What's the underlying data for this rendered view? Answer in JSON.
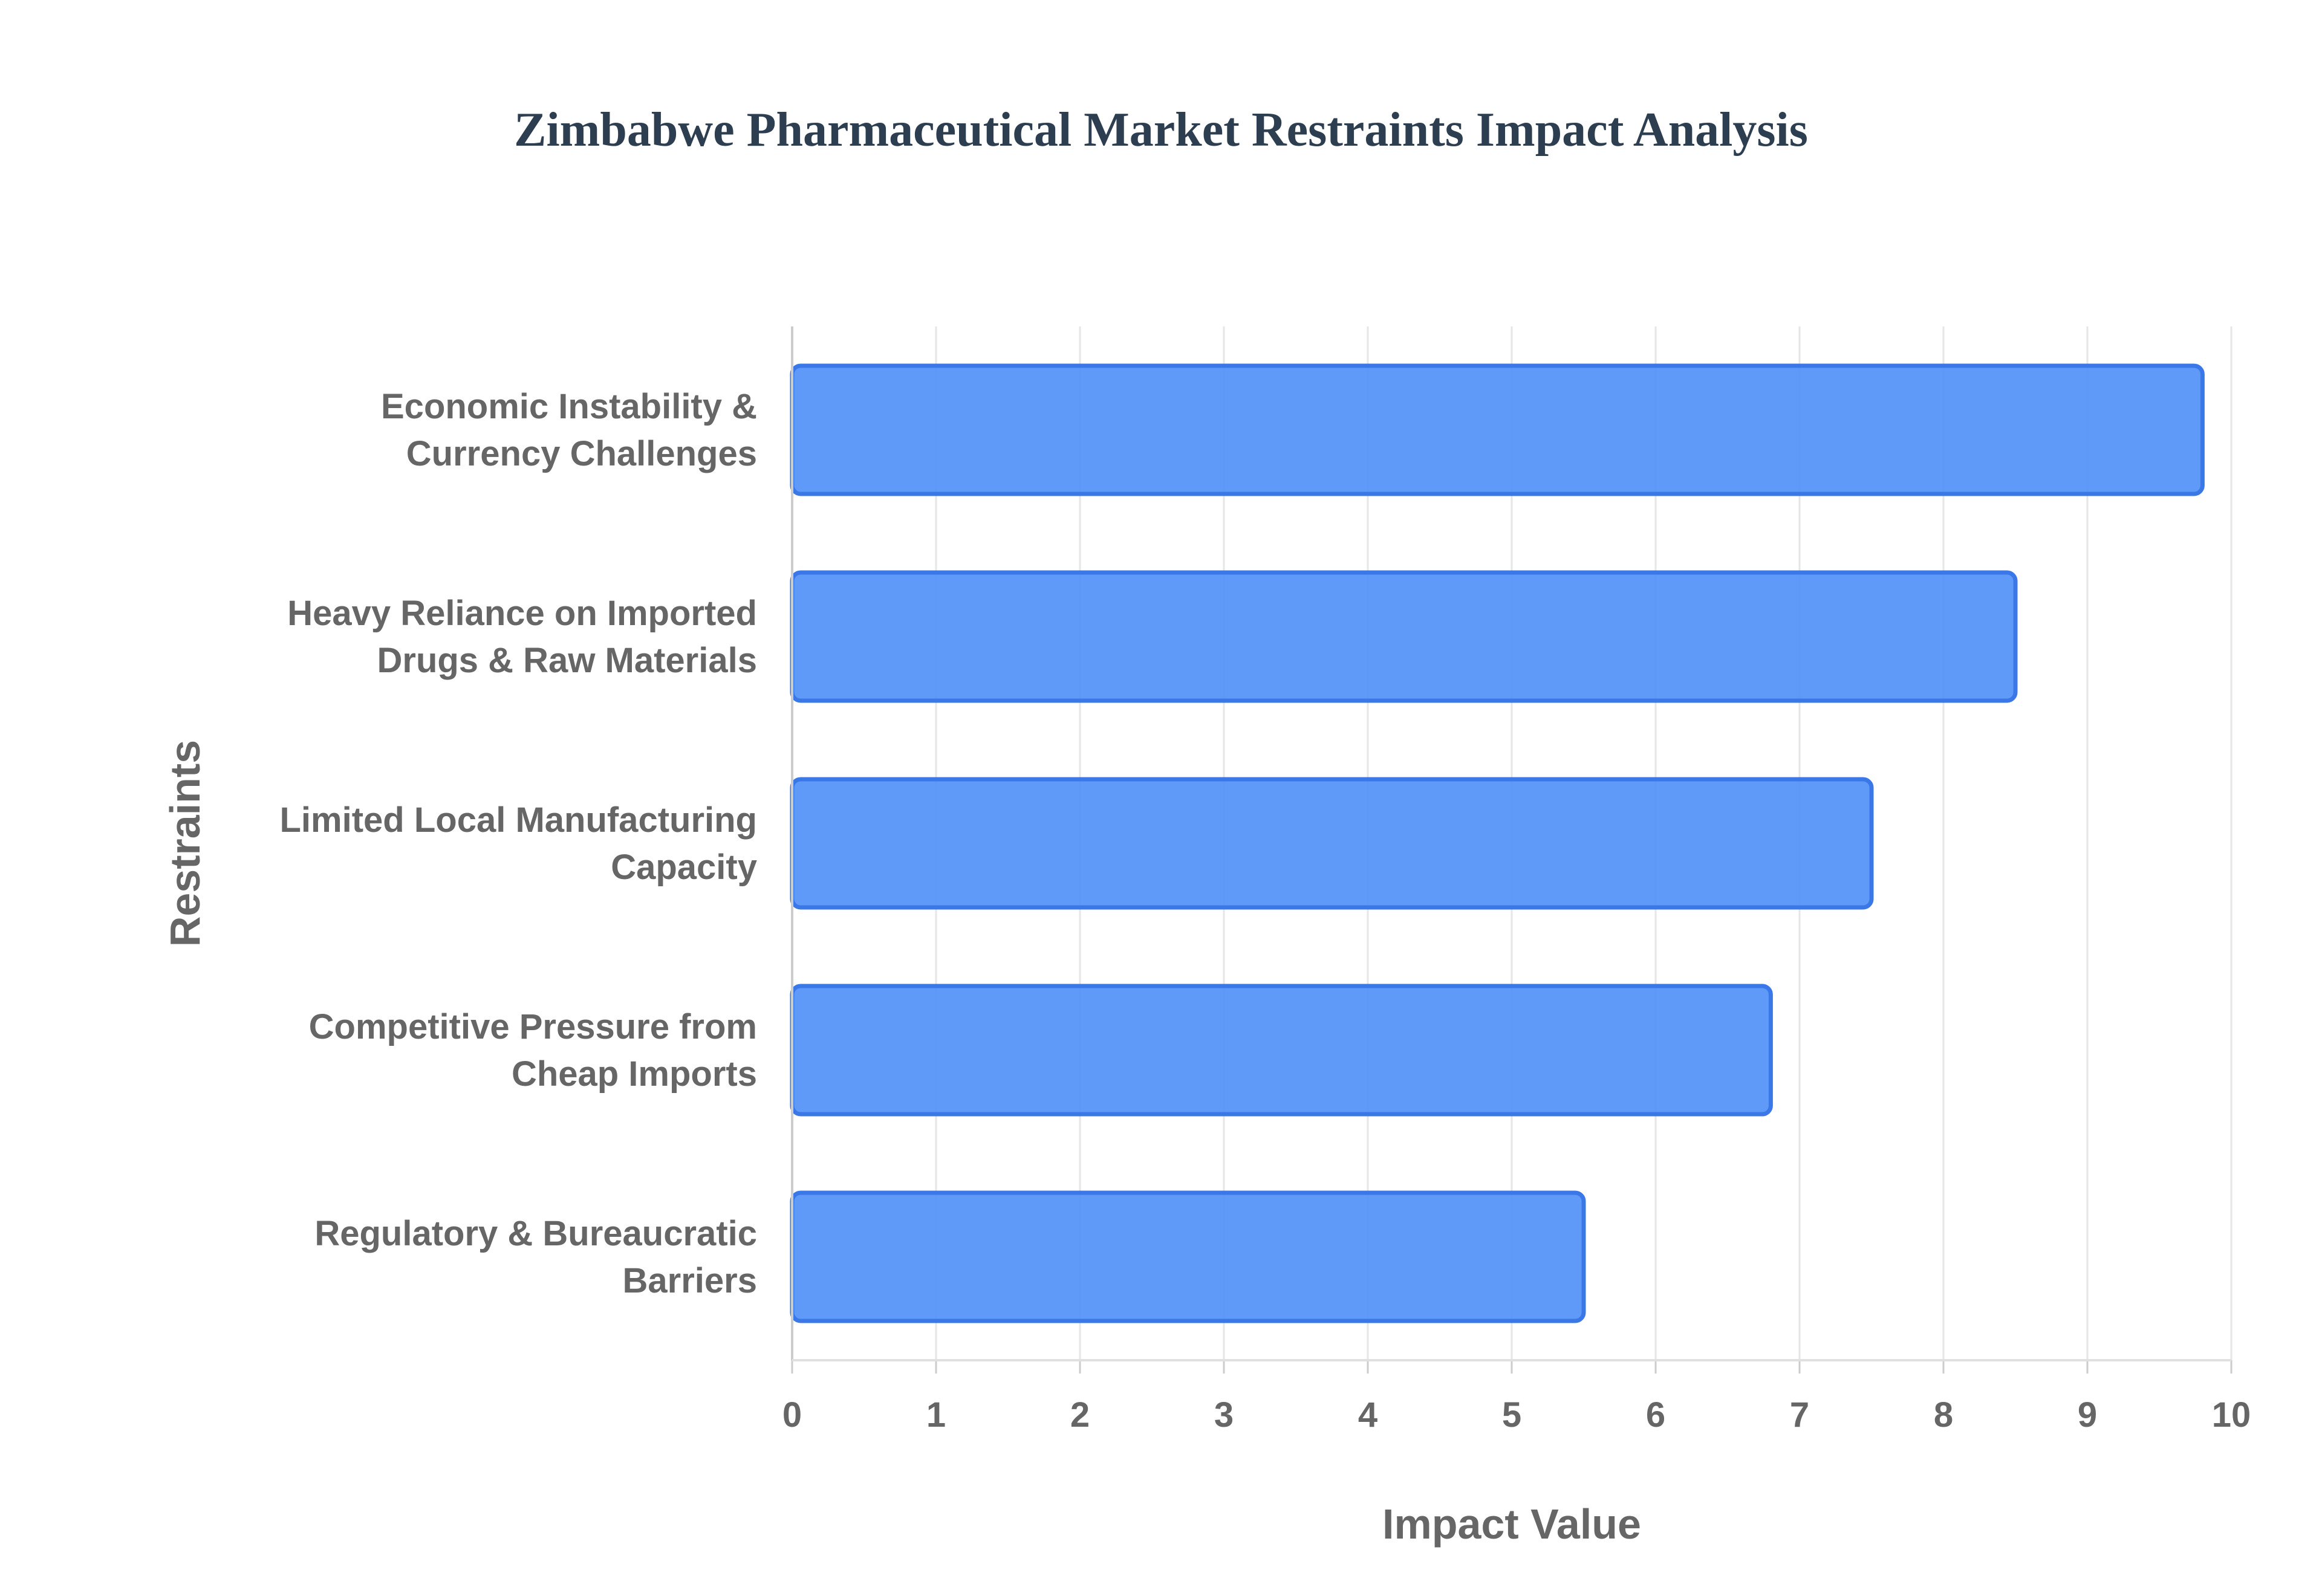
{
  "chart_data": {
    "type": "bar",
    "orientation": "horizontal",
    "title": "Zimbabwe Pharmaceutical Market Restraints Impact Analysis",
    "xlabel": "Impact Value",
    "ylabel": "Restraints",
    "xlim": [
      0,
      10
    ],
    "x_ticks": [
      "0",
      "1",
      "2",
      "3",
      "4",
      "5",
      "6",
      "7",
      "8",
      "9",
      "10"
    ],
    "grid": true,
    "legend": "none",
    "bar_color": "#4f8ff7",
    "bar_edge_color": "#3b78e7",
    "categories": [
      [
        "Economic Instability &",
        "Currency Challenges"
      ],
      [
        "Heavy Reliance on Imported",
        "Drugs & Raw Materials"
      ],
      [
        "Limited Local Manufacturing",
        "Capacity"
      ],
      [
        "Competitive Pressure from",
        "Cheap Imports"
      ],
      [
        "Regulatory & Bureaucratic",
        "Barriers"
      ]
    ],
    "values": [
      9.8,
      8.5,
      7.5,
      6.8,
      5.5
    ]
  }
}
